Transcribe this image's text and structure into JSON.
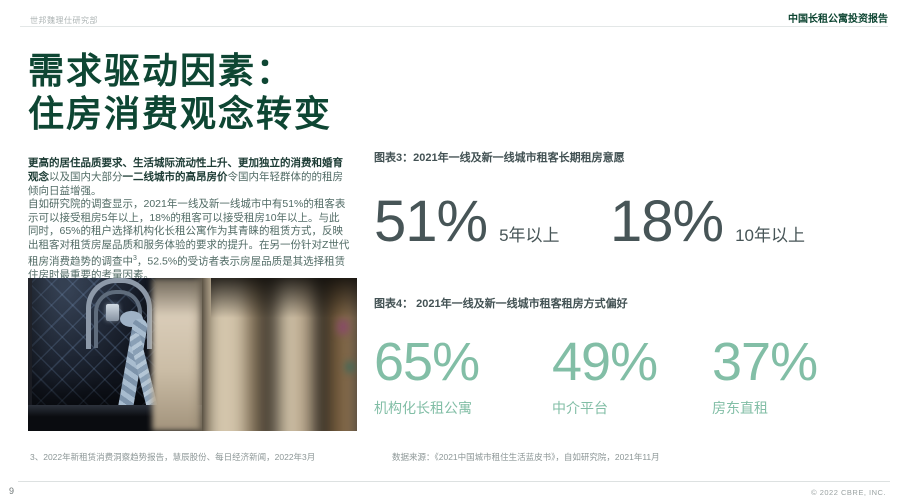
{
  "header": {
    "left_label": "世邦魏理仕研究部",
    "right_label": "中国长租公寓投资报告"
  },
  "title": {
    "line1": "需求驱动因素：",
    "line2": "住房消费观念转变"
  },
  "paragraphs": {
    "lead_bold_1": "更高的居住品质要求、生活城际流动性上升、更加独立的消费和婚育观念",
    "lead_regular_1": "以及国内大部分",
    "lead_bold_2": "一二线城市的高昂房价",
    "lead_regular_2": "令国内年轻群体的的租房倾向日益增强。",
    "body_part_1": "自如研究院的调查显示，2021年一线及新一线城市中有51%的租客表示可以接受租房5年以上，18%的租客可以接受租房10年以上。与此同时，65%的租户选择机构化长租公寓作为其青睐的租赁方式，反映出租客对租赁房屋品质和服务体验的要求的提升。在另一份针对Z世代租房消费趋势的调查中",
    "body_footnote_ref": "3",
    "body_part_2": "，52.5%的受访者表示房屋品质是其选择租赁住房时最重要的考量因素。"
  },
  "figure3": {
    "title": "图表3：2021年一线及新一线城市租客长期租房意愿",
    "stats": [
      {
        "value": "51%",
        "label": "5年以上"
      },
      {
        "value": "18%",
        "label": "10年以上"
      }
    ]
  },
  "figure4": {
    "title": "图表4：  2021年一线及新一线城市租客租房方式偏好",
    "stats": [
      {
        "value": "65%",
        "label": "机构化长租公寓"
      },
      {
        "value": "49%",
        "label": "中介平台"
      },
      {
        "value": "37%",
        "label": "房东直租"
      }
    ]
  },
  "footnote": "3、2022年新租赁消费洞察趋势报告，慧辰股份、每日经济新闻，2022年3月",
  "data_source": "数据来源：《2021中国城市租住生活蓝皮书》，自如研究院，2021年11月",
  "footer": {
    "page_number": "9",
    "copyright": "© 2022 CBRE, INC."
  },
  "colors": {
    "brand_green": "#0E4633",
    "stat_slate": "#475557",
    "stat_green": "#82BEA6"
  },
  "chart_data": [
    {
      "type": "bar",
      "title": "图表3：2021年一线及新一线城市租客长期租房意愿",
      "categories": [
        "5年以上",
        "10年以上"
      ],
      "values": [
        51,
        18
      ],
      "unit": "%",
      "style": "big-number-stat"
    },
    {
      "type": "bar",
      "title": "图表4：2021年一线及新一线城市租客租房方式偏好",
      "categories": [
        "机构化长租公寓",
        "中介平台",
        "房东直租"
      ],
      "values": [
        65,
        49,
        37
      ],
      "unit": "%",
      "style": "big-number-stat"
    }
  ]
}
